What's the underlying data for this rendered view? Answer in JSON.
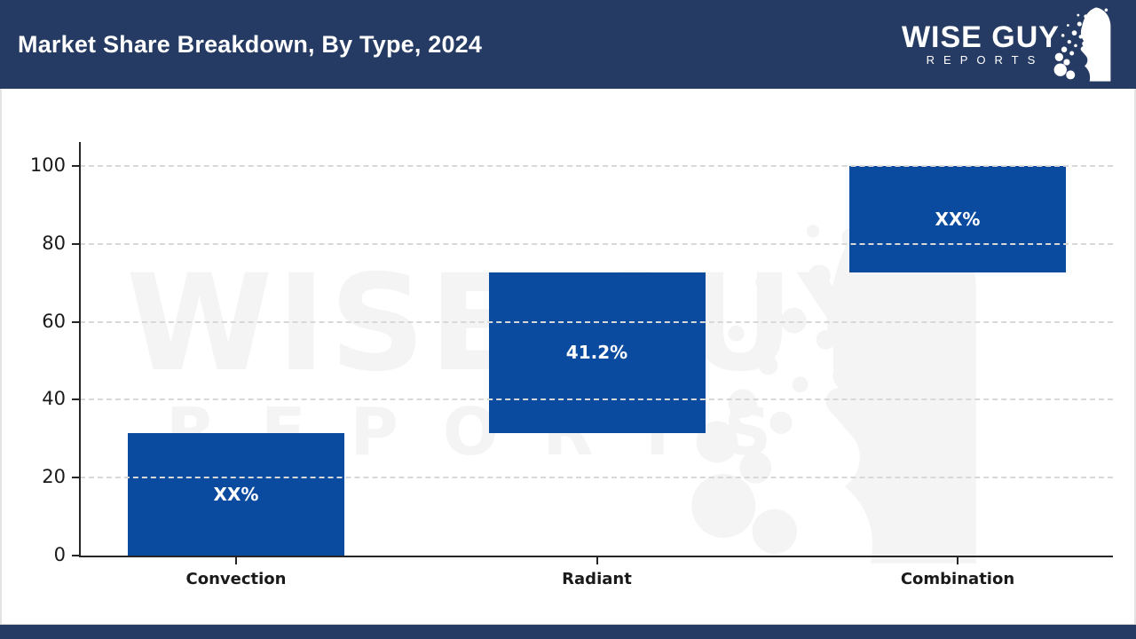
{
  "header": {
    "title": "Market Share Breakdown, By Type, 2024",
    "logo": {
      "line1": "WISE GUY",
      "line2": "REPORTS"
    }
  },
  "watermark": {
    "line1": "WISE GUY",
    "line2": "REPORTS"
  },
  "colors": {
    "navy": "#253b63",
    "bar_blue": "#0a4b9f",
    "grid": "#d8d8d8",
    "axis": "#262626",
    "watermark": "#f4f4f4"
  },
  "chart_data": {
    "type": "bar",
    "subtype": "waterfall",
    "title": "Market Share Breakdown, By Type, 2024",
    "categories": [
      "Convection",
      "Radiant",
      "Combination"
    ],
    "values": [
      31.5,
      41.2,
      27.3
    ],
    "cumulative": [
      [
        0,
        31.5
      ],
      [
        31.5,
        72.7
      ],
      [
        72.7,
        100
      ]
    ],
    "bar_labels": [
      "XX%",
      "41.2%",
      "XX%"
    ],
    "xlabel": "",
    "ylabel": "",
    "yticks": [
      0,
      20,
      40,
      60,
      80,
      100
    ],
    "ylim": [
      0,
      105
    ],
    "grid": "horizontal-dashed-over-bars",
    "legend": "none",
    "bar_color": "#0a4b9f"
  }
}
